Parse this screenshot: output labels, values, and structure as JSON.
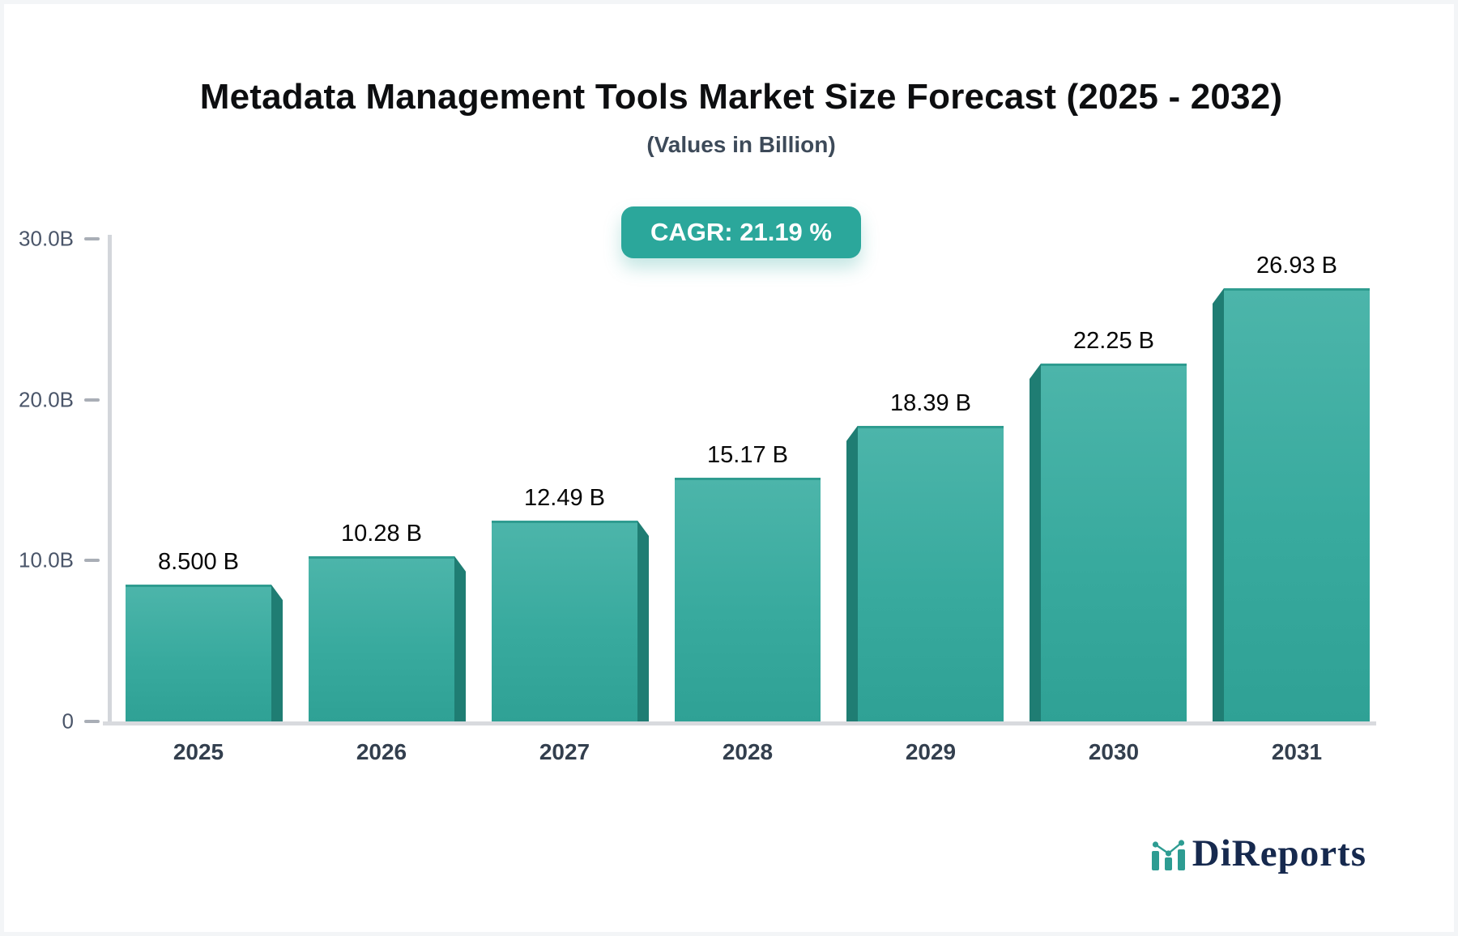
{
  "title": "Metadata Management Tools Market Size Forecast (2025 - 2032)",
  "subtitle": "(Values in Billion)",
  "badge": {
    "label": "CAGR: 21.19 %"
  },
  "chart_data": {
    "type": "bar",
    "categories": [
      "2025",
      "2026",
      "2027",
      "2028",
      "2029",
      "2030",
      "2031"
    ],
    "values": [
      8.5,
      10.28,
      12.49,
      15.17,
      18.39,
      22.25,
      26.93
    ],
    "value_labels": [
      "8.500 B",
      "10.28 B",
      "12.49 B",
      "15.17 B",
      "18.39 B",
      "22.25 B",
      "26.93 B"
    ],
    "title": "Metadata Management Tools Market Size Forecast (2025 - 2032)",
    "xlabel": "",
    "ylabel": "",
    "ylim": [
      0,
      30
    ],
    "yticks": [
      {
        "value": 0,
        "label": "0"
      },
      {
        "value": 10,
        "label": "10.0B"
      },
      {
        "value": 20,
        "label": "20.0B"
      },
      {
        "value": 30,
        "label": "30.0B"
      }
    ],
    "grid": false,
    "legend": "none",
    "bar_style": "3d-perspective-from-center"
  },
  "colors": {
    "accent_teal": "#2BA79B",
    "bar_top": "#4CB5AA",
    "bar_bottom": "#2FA195",
    "bar_side": "#1F7D73",
    "axis_line": "#d3d6db",
    "logo_navy": "#16294E",
    "logo_teal": "#2D9C92"
  },
  "logo": {
    "text": "DiReports",
    "icon": "mini-bar-chart-with-dots"
  }
}
